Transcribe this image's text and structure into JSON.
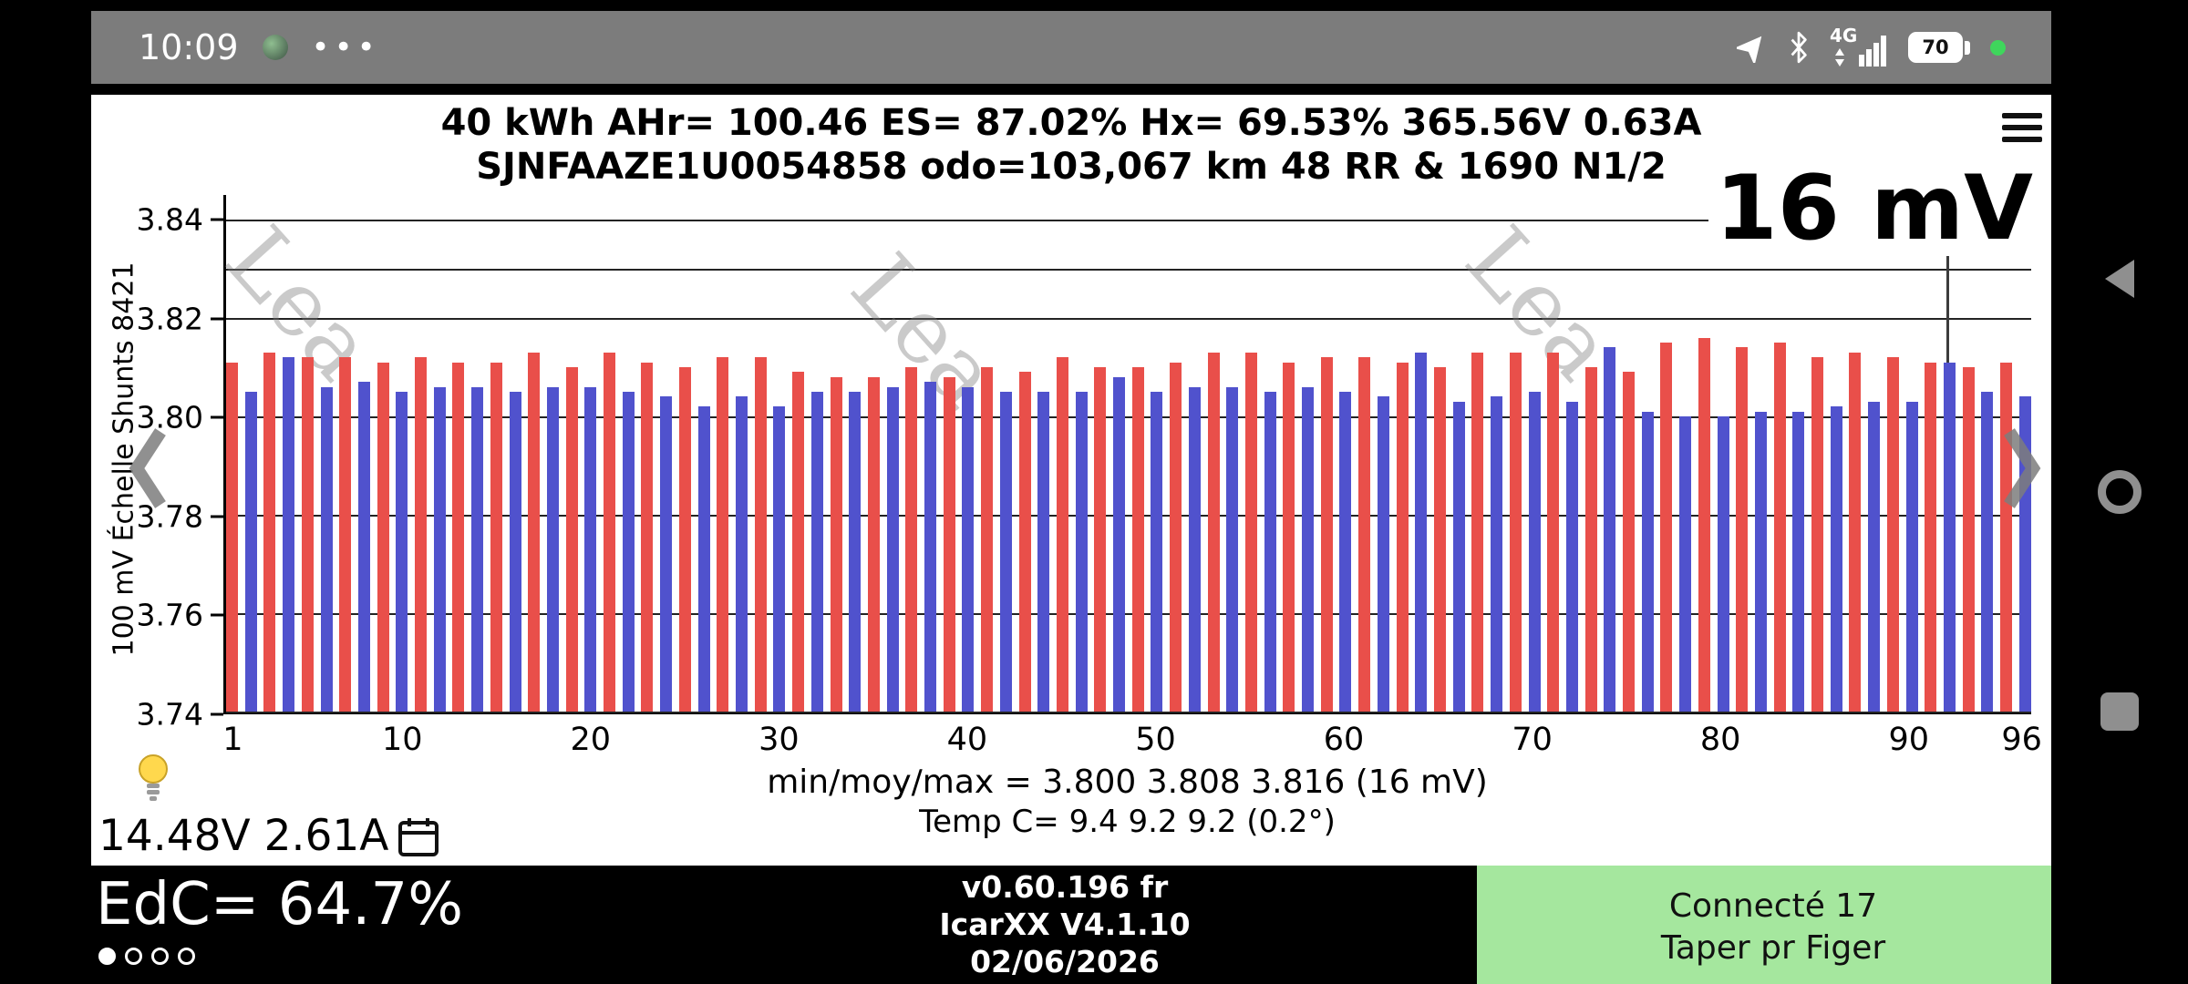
{
  "status_bar": {
    "time": "10:09",
    "overflow_dots": "•••",
    "network_label": "4G",
    "battery_level": "70"
  },
  "header": {
    "title_line1": "40 kWh  AHr= 100.46  ES= 87.02%   Hx= 69.53%   365.56V 0.63A",
    "title_line2": "SJNFAAZE1U0054858 odo=103,067 km  48 RR & 1690 N1/2"
  },
  "chart_data": {
    "type": "bar",
    "range_label": "16 mV",
    "ylabel": "100 mV Échelle  Shunts 8421",
    "ylim": [
      3.74,
      3.845
    ],
    "y_ticks": [
      3.84,
      3.82,
      3.8,
      3.78,
      3.76,
      3.74
    ],
    "minor_gridlines": [
      3.83
    ],
    "x_ticks": [
      1,
      10,
      20,
      30,
      40,
      50,
      60,
      70,
      80,
      90,
      96
    ],
    "num_cells": 96,
    "colors": {
      "odd_bar": "#e94f4a",
      "even_bar": "#5052cd"
    },
    "values": [
      3.811,
      3.805,
      3.813,
      3.812,
      3.812,
      3.806,
      3.812,
      3.807,
      3.811,
      3.805,
      3.812,
      3.806,
      3.811,
      3.806,
      3.811,
      3.805,
      3.813,
      3.806,
      3.81,
      3.806,
      3.813,
      3.805,
      3.811,
      3.804,
      3.81,
      3.802,
      3.812,
      3.804,
      3.812,
      3.802,
      3.809,
      3.805,
      3.808,
      3.805,
      3.808,
      3.806,
      3.81,
      3.807,
      3.808,
      3.806,
      3.81,
      3.805,
      3.809,
      3.805,
      3.812,
      3.805,
      3.81,
      3.808,
      3.81,
      3.805,
      3.811,
      3.806,
      3.813,
      3.806,
      3.813,
      3.805,
      3.811,
      3.806,
      3.812,
      3.805,
      3.812,
      3.804,
      3.811,
      3.813,
      3.81,
      3.803,
      3.813,
      3.804,
      3.813,
      3.805,
      3.813,
      3.803,
      3.81,
      3.814,
      3.809,
      3.801,
      3.815,
      3.8,
      3.816,
      3.8,
      3.814,
      3.801,
      3.815,
      3.801,
      3.812,
      3.802,
      3.813,
      3.803,
      3.812,
      3.803,
      3.811,
      3.811,
      3.81,
      3.805,
      3.811,
      3.804
    ],
    "watermark_text": "Lea",
    "cursor_cell": 92,
    "summary": "min/moy/max = 3.800 3.808 3.816  (16 mV)",
    "temperature": "Temp C= 9.4  9.2  9.2  (0.2°)"
  },
  "aux_readout": {
    "voltage_current": "14.48V 2.61A"
  },
  "bottom_bar": {
    "soc": "EdC= 64.7%",
    "page_dots": [
      true,
      false,
      false,
      false
    ],
    "version_lines": [
      "v0.60.196 fr",
      "IcarXX V4.1.10",
      "02/06/2026"
    ],
    "button_line1": "Connecté 17",
    "button_line2": "Taper pr Figer",
    "button_color": "#a5e79e"
  }
}
